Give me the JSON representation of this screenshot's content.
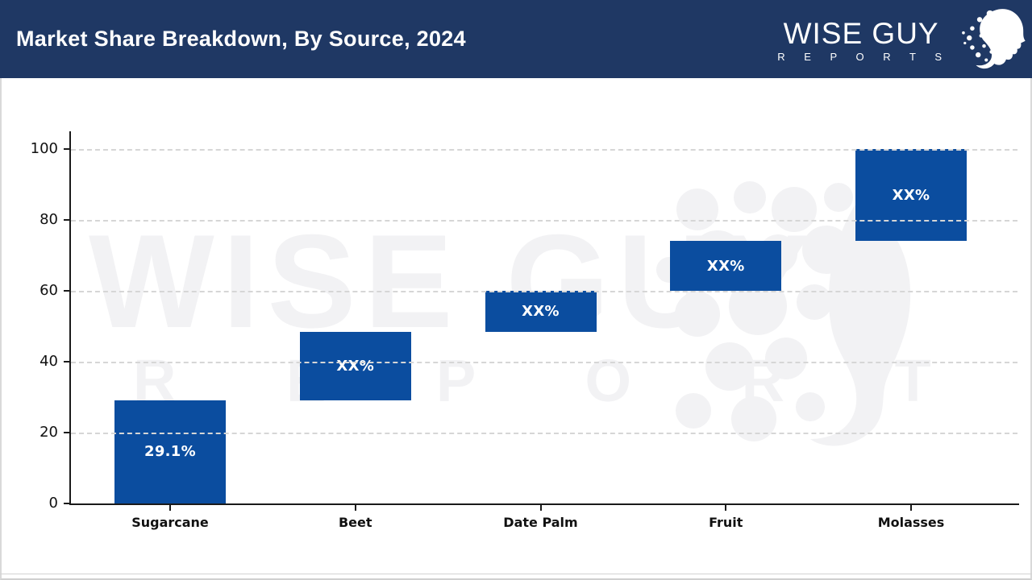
{
  "header": {
    "title": "Market Share Breakdown, By Source, 2024",
    "bg_color": "#1f3864",
    "logo": {
      "line1": "WISE GUY",
      "line2": "R E P O R T S"
    }
  },
  "watermark": {
    "line1": "WISE GUY",
    "line2": "R E P O R T S"
  },
  "chart_data": {
    "type": "bar",
    "subtype": "waterfall",
    "title": "Market Share Breakdown, By Source, 2024",
    "categories": [
      "Sugarcane",
      "Beet",
      "Date Palm",
      "Fruit",
      "Molasses"
    ],
    "segments": [
      {
        "category": "Sugarcane",
        "start": 0,
        "end": 29.1,
        "value": 29.1,
        "label": "29.1%"
      },
      {
        "category": "Beet",
        "start": 29.1,
        "end": 48.4,
        "value": 19.3,
        "label": "XX%"
      },
      {
        "category": "Date Palm",
        "start": 48.4,
        "end": 59.9,
        "value": 11.5,
        "label": "XX%"
      },
      {
        "category": "Fruit",
        "start": 59.9,
        "end": 74.0,
        "value": 14.1,
        "label": "XX%"
      },
      {
        "category": "Molasses",
        "start": 74.0,
        "end": 100,
        "value": 26.0,
        "label": "XX%"
      }
    ],
    "yticks": [
      0,
      20,
      40,
      60,
      80,
      100
    ],
    "ylim": [
      0,
      105
    ],
    "xlabel": "",
    "ylabel": "",
    "grid": "horizontal-dashed",
    "legend": "none",
    "bar_color": "#0b4d9f",
    "bar_label_color": "#ffffff",
    "grid_color": "#d6d6d6",
    "axis_color": "#1a1a1a"
  }
}
